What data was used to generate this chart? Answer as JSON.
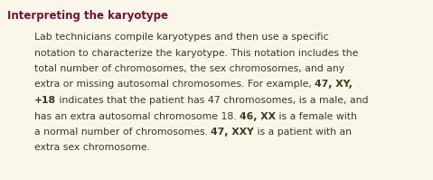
{
  "background_color": "#faf6ea",
  "title": "Interpreting the karyotype",
  "title_color": "#6b1535",
  "title_fontsize": 8.5,
  "body_color": "#3a3a1a",
  "body_fontsize": 7.8,
  "lines": [
    [
      {
        "text": "Lab technicians compile karyotypes and then use a specific",
        "bold": false
      }
    ],
    [
      {
        "text": "notation to characterize the karyotype. This notation includes the",
        "bold": false
      }
    ],
    [
      {
        "text": "total number of chromosomes, the sex chromosomes, and any",
        "bold": false
      }
    ],
    [
      {
        "text": "extra or missing autosomal chromosomes. For example, ",
        "bold": false
      },
      {
        "text": "47, XY,",
        "bold": true
      }
    ],
    [
      {
        "text": "+18",
        "bold": true
      },
      {
        "text": " indicates that the patient has 47 chromosomes, is a male, and",
        "bold": false
      }
    ],
    [
      {
        "text": "has an extra autosomal chromosome 18. ",
        "bold": false
      },
      {
        "text": "46, XX",
        "bold": true
      },
      {
        "text": " is a female with",
        "bold": false
      }
    ],
    [
      {
        "text": "a normal number of chromosomes. ",
        "bold": false
      },
      {
        "text": "47, XXY",
        "bold": true
      },
      {
        "text": " is a patient with an",
        "bold": false
      }
    ],
    [
      {
        "text": "extra sex chromosome.",
        "bold": false
      }
    ]
  ]
}
